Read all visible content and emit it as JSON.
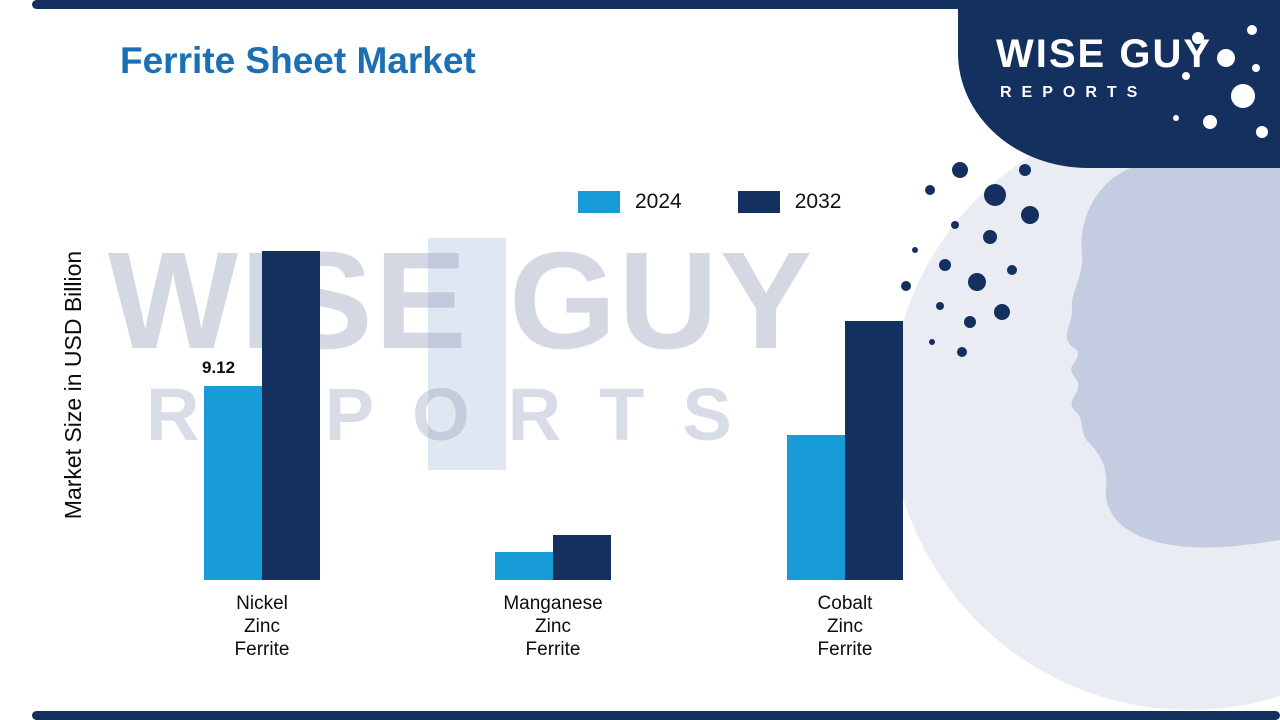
{
  "page": {
    "title": "Ferrite Sheet Market"
  },
  "logo": {
    "line1": "WISE GUY",
    "line2": "REPORTS"
  },
  "watermark": {
    "line1": "WISE GUY",
    "line2": "REPORTS"
  },
  "colors": {
    "brand_navy": "#14305f",
    "accent_blue": "#189cd8",
    "title_blue": "#1a6fb5"
  },
  "chart_data": {
    "type": "bar",
    "title": "Ferrite Sheet Market",
    "xlabel": "",
    "ylabel": "Market Size in USD Billion",
    "categories": [
      "Nickel Zinc Ferrite",
      "Manganese Zinc Ferrite",
      "Cobalt Zinc Ferrite"
    ],
    "series": [
      {
        "name": "2024",
        "color": "#189cd8",
        "values": [
          9.12,
          1.3,
          6.8
        ]
      },
      {
        "name": "2032",
        "color": "#14305f",
        "values": [
          15.5,
          2.1,
          12.2
        ]
      }
    ],
    "value_labels": [
      {
        "series_index": 0,
        "category_index": 0,
        "text": "9.12"
      }
    ],
    "ylim": [
      0,
      16
    ],
    "grid": false,
    "legend_position": "top"
  }
}
